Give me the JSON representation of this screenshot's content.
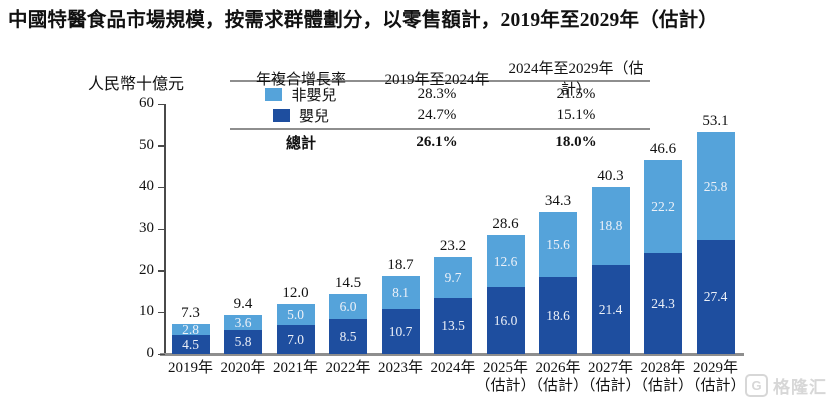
{
  "title": "中國特醫食品市場規模，按需求群體劃分，以零售額計，2019年至2029年（估計）",
  "y_axis_label": "人民幣十億元",
  "growth_table": {
    "header": {
      "col1": "年複合增長率",
      "col2": "2019年至2024年",
      "col3": "2024年至2029年（估計）"
    },
    "rows": [
      {
        "label": "非嬰兒",
        "color": "#55A3DA",
        "cagr_2019_2024": "28.3%",
        "cagr_2024_2029": "21.5%"
      },
      {
        "label": "嬰兒",
        "color": "#1E4E9F",
        "cagr_2019_2024": "24.7%",
        "cagr_2024_2029": "15.1%"
      }
    ],
    "total": {
      "label": "總計",
      "cagr_2019_2024": "26.1%",
      "cagr_2024_2029": "18.0%"
    }
  },
  "chart_data": {
    "type": "bar",
    "stacked": true,
    "title": "中國特醫食品市場規模，按需求群體劃分，以零售額計，2019年至2029年（估計）",
    "ylabel": "人民幣十億元",
    "ylim": [
      0,
      60
    ],
    "yticks": [
      0,
      10,
      20,
      30,
      40,
      50,
      60
    ],
    "grid": false,
    "legend_position": "top-table",
    "categories": [
      "2019年",
      "2020年",
      "2021年",
      "2022年",
      "2023年",
      "2024年",
      "2025年",
      "2026年",
      "2027年",
      "2028年",
      "2029年"
    ],
    "category_sublabels": [
      "",
      "",
      "",
      "",
      "",
      "",
      "（估計）",
      "（估計）",
      "（估計）",
      "（估計）",
      "（估計）"
    ],
    "series": [
      {
        "name": "嬰兒",
        "color": "#1E4E9F",
        "values": [
          4.5,
          5.8,
          7.0,
          8.5,
          10.7,
          13.5,
          16.0,
          18.6,
          21.4,
          24.3,
          27.4
        ]
      },
      {
        "name": "非嬰兒",
        "color": "#55A3DA",
        "values": [
          2.8,
          3.6,
          5.0,
          6.0,
          8.1,
          9.7,
          12.6,
          15.6,
          18.8,
          22.2,
          25.8
        ]
      }
    ],
    "totals": [
      7.3,
      9.4,
      12.0,
      14.5,
      18.7,
      23.2,
      28.6,
      34.3,
      40.3,
      46.6,
      53.1
    ]
  },
  "watermark": {
    "icon": "G",
    "text": "格隆汇"
  }
}
